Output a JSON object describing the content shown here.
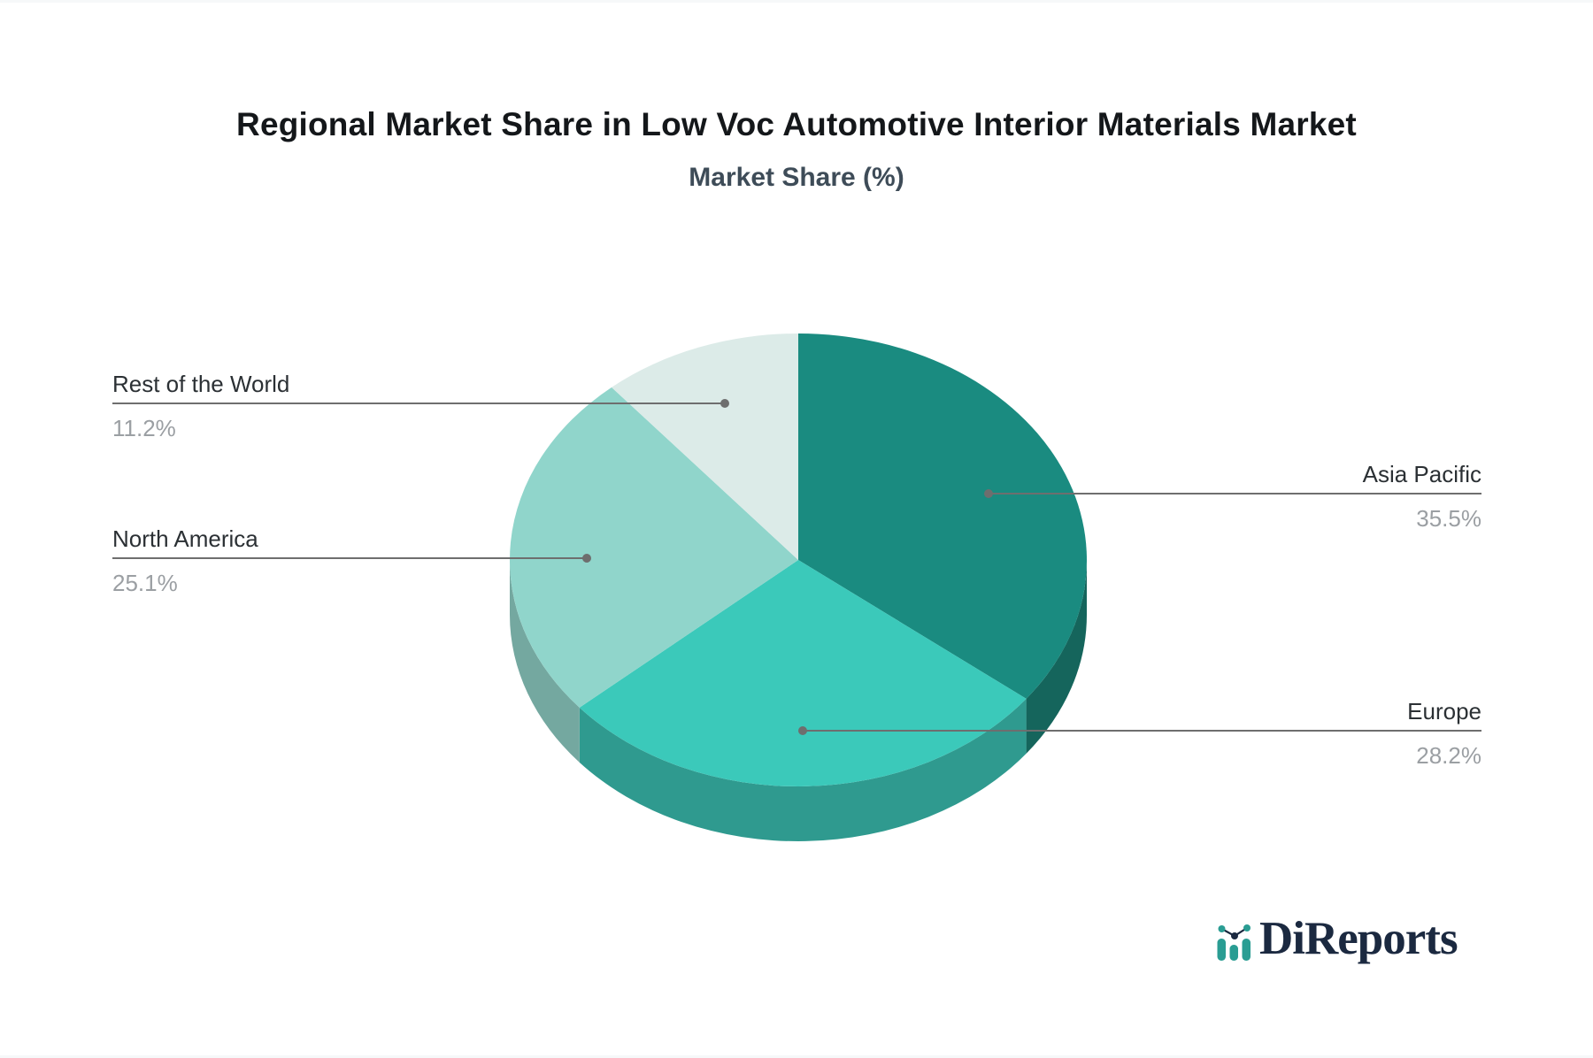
{
  "page": {
    "background": "#ffffff"
  },
  "header": {
    "title": "Regional Market Share in Low Voc Automotive Interior Materials Market",
    "subtitle": "Market Share (%)"
  },
  "chart_data": {
    "type": "pie",
    "style": "3d",
    "title": "Regional Market Share in Low Voc Automotive Interior Materials Market",
    "subtitle": "Market Share (%)",
    "unit": "%",
    "start_angle_deg": 0,
    "direction": "clockwise",
    "legend_position": "outside-callouts",
    "labels": [
      "Asia Pacific",
      "Europe",
      "North America",
      "Rest of the World"
    ],
    "values": [
      35.5,
      28.2,
      25.1,
      11.2
    ],
    "display_values": [
      "35.5%",
      "28.2%",
      "25.1%",
      "11.2%"
    ],
    "colors": [
      "#1a8b80",
      "#3bc9ba",
      "#90d5cb",
      "#dcebe8"
    ],
    "side_colors": [
      "#15655c",
      "#2f9a8f",
      "#74a8a0",
      "#b9d2cd"
    ],
    "leader_line_color": "#6e6e6e",
    "label_text_color": "#2b3034",
    "value_text_color": "#9b9fa3"
  },
  "logo": {
    "text": "DiReports",
    "icon": "bar-line-chart-icon",
    "text_color": "#1b2940",
    "accent_color": "#2a9d93"
  }
}
